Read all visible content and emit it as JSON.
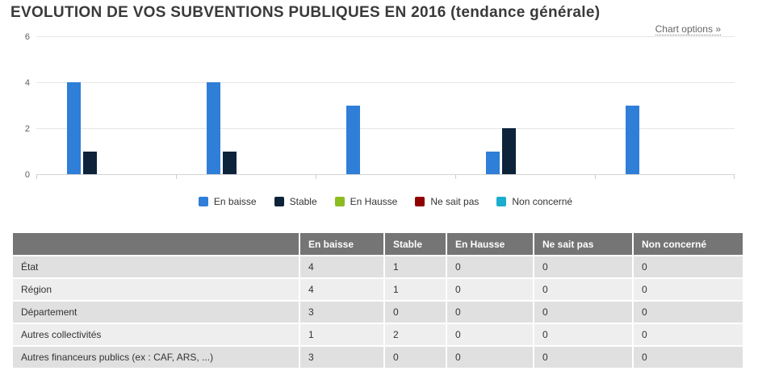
{
  "title": "EVOLUTION DE VOS SUBVENTIONS PUBLIQUES EN 2016 (tendance générale)",
  "chart_options_label": "Chart options »",
  "chart_data": {
    "type": "bar",
    "categories": [
      "État",
      "Région",
      "Département",
      "Autres collectivités",
      "Autres financeurs publics (ex : CAF, ARS, ...)"
    ],
    "series": [
      {
        "name": "En baisse",
        "color": "#2f7ed8",
        "values": [
          4,
          4,
          3,
          1,
          3
        ]
      },
      {
        "name": "Stable",
        "color": "#0d233a",
        "values": [
          1,
          1,
          0,
          2,
          0
        ]
      },
      {
        "name": "En Hausse",
        "color": "#8bbc21",
        "values": [
          0,
          0,
          0,
          0,
          0
        ]
      },
      {
        "name": "Ne sait pas",
        "color": "#910000",
        "values": [
          0,
          0,
          0,
          0,
          0
        ]
      },
      {
        "name": "Non concerné",
        "color": "#1aadce",
        "values": [
          0,
          0,
          0,
          0,
          0
        ]
      }
    ],
    "title": "EVOLUTION DE VOS SUBVENTIONS PUBLIQUES EN 2016 (tendance générale)",
    "xlabel": "",
    "ylabel": "",
    "ylim": [
      0,
      6
    ],
    "yticks": [
      0,
      2,
      4,
      6
    ],
    "grid": true,
    "legend_position": "bottom",
    "x_tick_labels_visible": false
  },
  "table": {
    "columns": [
      "",
      "En baisse",
      "Stable",
      "En Hausse",
      "Ne sait pas",
      "Non concerné"
    ],
    "rows": [
      {
        "label": "État",
        "values": [
          4,
          1,
          0,
          0,
          0
        ]
      },
      {
        "label": "Région",
        "values": [
          4,
          1,
          0,
          0,
          0
        ]
      },
      {
        "label": "Département",
        "values": [
          3,
          0,
          0,
          0,
          0
        ]
      },
      {
        "label": "Autres collectivités",
        "values": [
          1,
          2,
          0,
          0,
          0
        ]
      },
      {
        "label": "Autres financeurs publics (ex : CAF, ARS, ...)",
        "values": [
          3,
          0,
          0,
          0,
          0
        ]
      }
    ]
  }
}
